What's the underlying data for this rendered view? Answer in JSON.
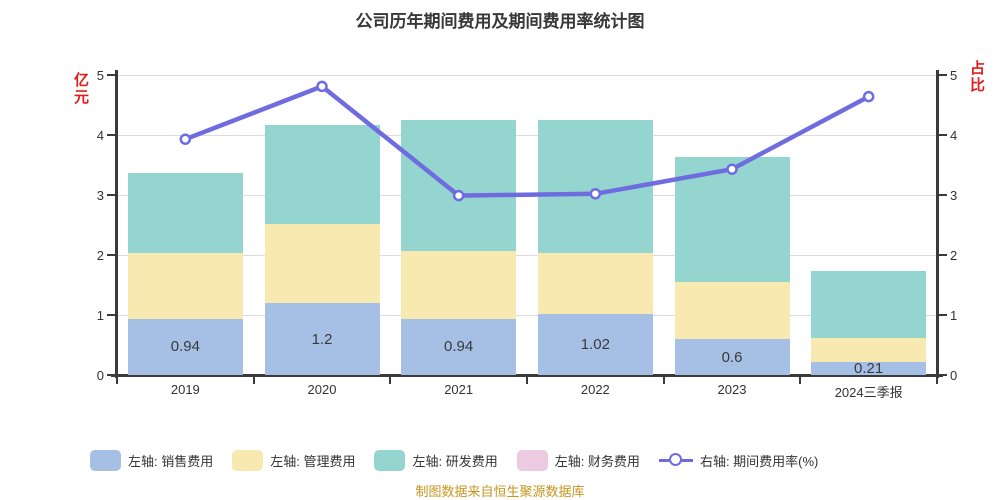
{
  "title": "公司历年期间费用及期间费用率统计图",
  "axes": {
    "left_unit_label": "亿元",
    "right_unit_label": "占比",
    "yticks": [
      0,
      1,
      2,
      3,
      4,
      5
    ]
  },
  "chart_data": {
    "type": "bar",
    "subtype": "stacked-bar-with-line-overlay",
    "categories": [
      "2019",
      "2020",
      "2021",
      "2022",
      "2023",
      "2024三季报"
    ],
    "series": [
      {
        "name": "左轴: 销售费用",
        "color": "#a5c0e4",
        "values": [
          0.94,
          1.2,
          0.94,
          1.02,
          0.6,
          0.21
        ],
        "show_labels": true,
        "labels": [
          "0.94",
          "1.2",
          "0.94",
          "1.02",
          "0.6",
          "0.21"
        ]
      },
      {
        "name": "左轴: 管理费用",
        "color": "#f7e9af",
        "values": [
          1.09,
          1.32,
          1.13,
          1.02,
          0.95,
          0.4
        ],
        "show_labels": false
      },
      {
        "name": "左轴: 研发费用",
        "color": "#95d5cf",
        "values": [
          1.33,
          1.65,
          2.18,
          2.21,
          2.08,
          1.13
        ],
        "show_labels": false
      },
      {
        "name": "左轴: 财务费用",
        "color": "#eccae2",
        "values": [
          0,
          0,
          0,
          0,
          0,
          0
        ],
        "show_labels": false
      }
    ],
    "line_series": {
      "name": "右轴: 期间费用率(%)",
      "color": "#6f6ce0",
      "values": [
        3.93,
        4.81,
        2.99,
        3.02,
        3.43,
        4.64
      ]
    },
    "ylim_left": [
      0,
      5
    ],
    "ylim_right": [
      0,
      5
    ],
    "grid": true,
    "legend_position": "bottom"
  },
  "footer": "制图数据来自恒生聚源数据库"
}
